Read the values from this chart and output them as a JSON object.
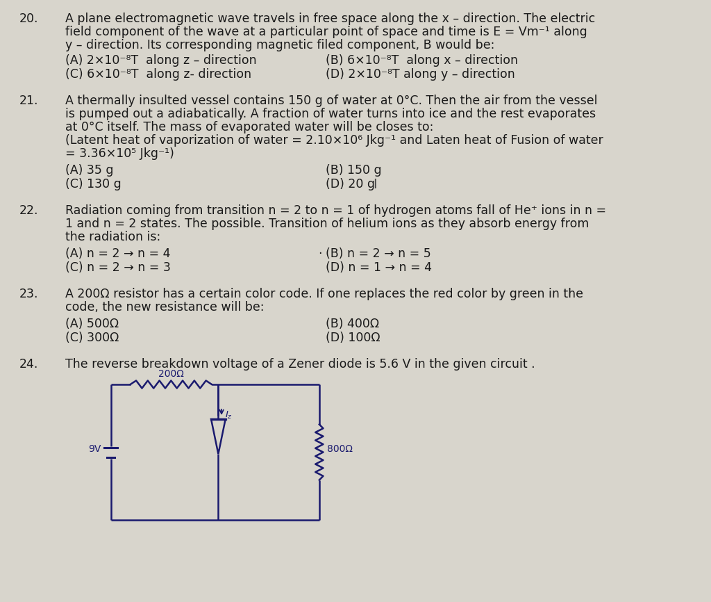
{
  "bg_color": "#d8d5cc",
  "text_color": "#1a1a1a",
  "q20_num": "20.",
  "q20_line1": "A plane electromagnetic wave travels in free space along the x – direction. The electric",
  "q20_line2": "field component of the wave at a particular point of space and time is E = Vm⁻¹ along",
  "q20_line3": "y – direction. Its corresponding magnetic filed component, B would be:",
  "q20_A": "(A) 2×10⁻⁸T  along z – direction",
  "q20_B": "(B) 6×10⁻⁸T  along x – direction",
  "q20_C": "(C) 6×10⁻⁸T  along z- direction",
  "q20_D": "(D) 2×10⁻⁸T along y – direction",
  "q21_num": "21.",
  "q21_line1": "A thermally insulted vessel contains 150 g of water at 0°C. Then the air from the vessel",
  "q21_line2": "is pumped out a adiabatically. A fraction of water turns into ice and the rest evaporates",
  "q21_line3": "at 0°C itself. The mass of evaporated water will be closes to:",
  "q21_line4": "(Latent heat of vaporization of water = 2.10×10⁶ Jkg⁻¹ and Laten heat of Fusion of water",
  "q21_line5": "= 3.36×10⁵ Jkg⁻¹)",
  "q21_A": "(A) 35 g",
  "q21_B": "(B) 150 g",
  "q21_C": "(C) 130 g",
  "q21_D": "(D) 20 g",
  "q22_num": "22.",
  "q22_line1": "Radiation coming from transition n = 2 to n = 1 of hydrogen atoms fall of He⁺ ions in n =",
  "q22_line2": "1 and n = 2 states. The possible. Transition of helium ions as they absorb energy from",
  "q22_line3": "the radiation is:",
  "q22_A": "(A) n = 2 → n = 4",
  "q22_B": "(B) n = 2 → n = 5",
  "q22_C": "(C) n = 2 → n = 3",
  "q22_D": "(D) n = 1 → n = 4",
  "q23_num": "23.",
  "q23_line1": "A 200Ω resistor has a certain color code. If one replaces the red color by green in the",
  "q23_line2": "code, the new resistance will be:",
  "q23_A": "(A) 500Ω",
  "q23_B": "(B) 400Ω",
  "q23_C": "(C) 300Ω",
  "q23_D": "(D) 100Ω",
  "q24_num": "24.",
  "q24_text": "The reverse breakdown voltage of a Zener diode is 5.6 V in the given circuit .",
  "circuit_color": "#1a1a6e",
  "font_size": 12.5
}
